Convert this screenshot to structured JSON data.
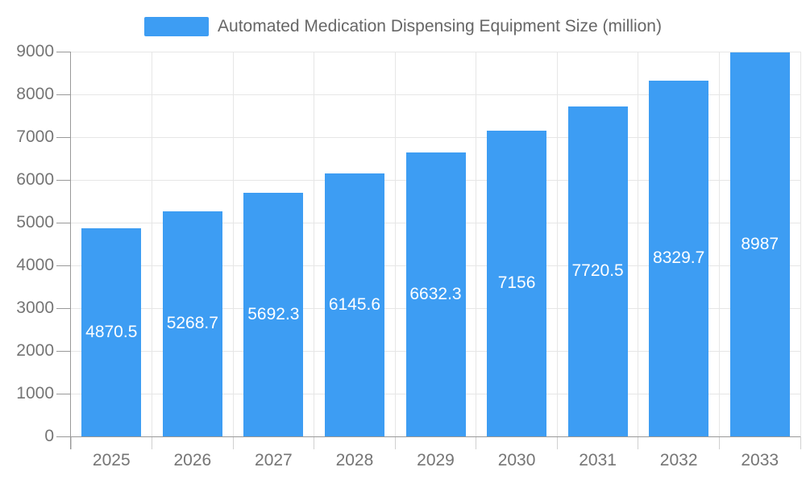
{
  "chart_data": {
    "type": "bar",
    "title": "Automated Medication Dispensing Equipment Size (million)",
    "categories": [
      "2025",
      "2026",
      "2027",
      "2028",
      "2029",
      "2030",
      "2031",
      "2032",
      "2033"
    ],
    "values": [
      4870.5,
      5268.7,
      5692.3,
      6145.6,
      6632.3,
      7156,
      7720.5,
      8329.7,
      8987
    ],
    "series_name": "Automated Medication Dispensing Equipment Size (million)",
    "xlabel": "",
    "ylabel": "",
    "ylim": [
      0,
      9000
    ],
    "ytick_step": 1000,
    "ytick_labels": [
      "0",
      "1000",
      "2000",
      "3000",
      "4000",
      "5000",
      "6000",
      "7000",
      "8000",
      "9000"
    ],
    "grid": true,
    "legend_position": "top-center",
    "value_labels": "inside-center",
    "colors": {
      "bar": "#3d9df3",
      "bar_value_label": "#ffffff",
      "gridline": "#e6e6e6",
      "axis_line": "#999999",
      "y_tick": "#999999",
      "x_boundary_tick": "#d0d0d0",
      "axis_text": "#757575",
      "title_text": "#666666",
      "background": "#ffffff"
    }
  }
}
